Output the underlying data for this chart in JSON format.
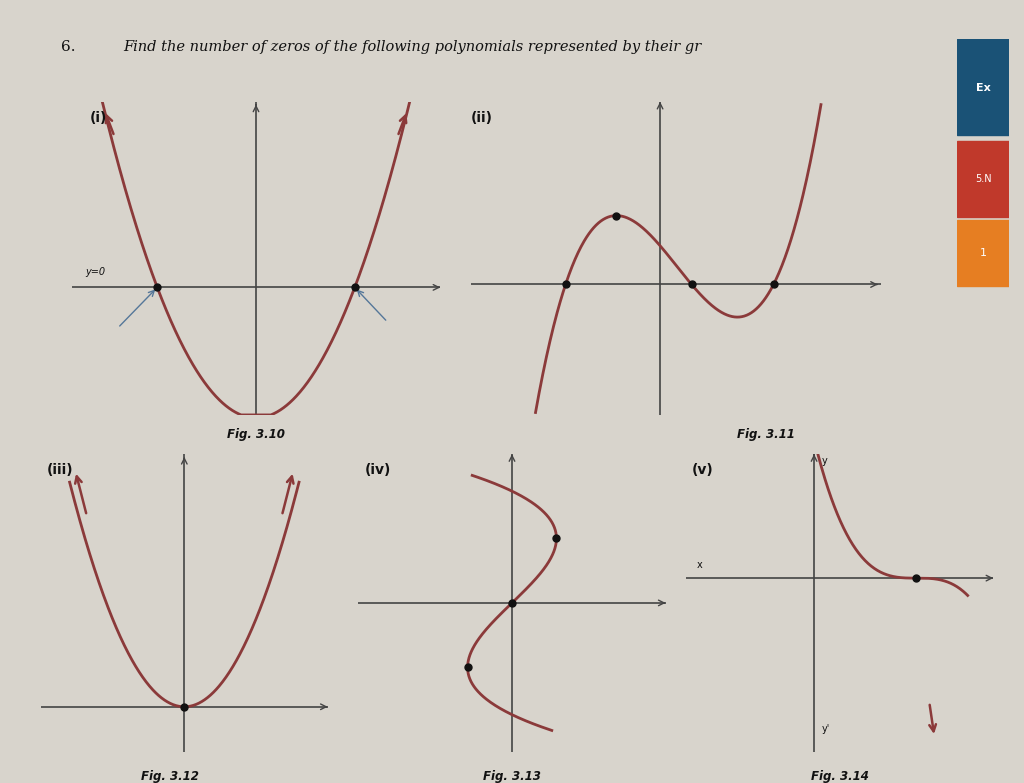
{
  "title_num": "6.",
  "title_text": "Find the number of zeros of the following polynomials represented by their gr",
  "background_color": "#ccc8c0",
  "page_color": "#d8d4cc",
  "curve_color": "#8b3a3a",
  "axis_color": "#444444",
  "dot_color": "#111111",
  "label_color": "#111111",
  "arrow_color": "#557799",
  "fig_labels": [
    "Fig. 3.10",
    "Fig. 3.11",
    "Fig. 3.12",
    "Fig. 3.13",
    "Fig. 3.14"
  ],
  "sub_labels": [
    "(i)",
    "(ii)",
    "(iii)",
    "(iv)",
    "(v)"
  ]
}
